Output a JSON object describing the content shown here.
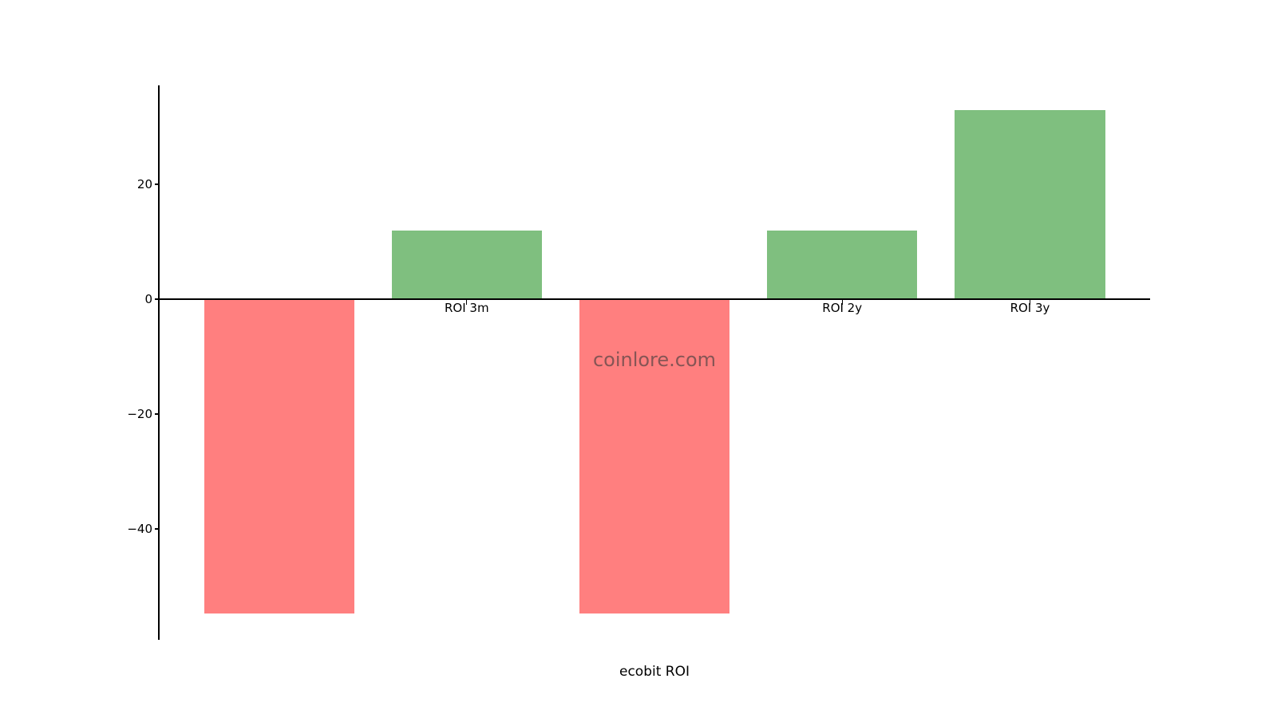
{
  "chart_data": {
    "type": "bar",
    "title": "",
    "xlabel": "ecobit ROI",
    "ylabel": "",
    "categories": [
      "",
      "ROI 3m",
      "",
      "ROI 2y",
      "ROI 3y"
    ],
    "values": [
      -54.7,
      11.9,
      -54.7,
      11.9,
      32.9
    ],
    "bar_colors": [
      "#ff7f7f",
      "#7fbf7f",
      "#ff7f7f",
      "#7fbf7f",
      "#7fbf7f"
    ],
    "positive_color": "#7fbf7f",
    "negative_color": "#ff7f7f",
    "y_ticks": [
      {
        "label": "20",
        "value": 20
      },
      {
        "label": "0",
        "value": 0
      },
      {
        "label": "−20",
        "value": -20
      },
      {
        "label": "−40",
        "value": -40
      }
    ],
    "ylim": [
      -59.3,
      37.3
    ],
    "xlim": [
      -0.64,
      4.64
    ],
    "bar_width_units": 0.8,
    "grid": false,
    "legend_position": "none"
  },
  "watermark": {
    "text": "coinlore.com"
  },
  "colors": {
    "axis": "#000000",
    "text": "#000000",
    "background": "#ffffff"
  }
}
